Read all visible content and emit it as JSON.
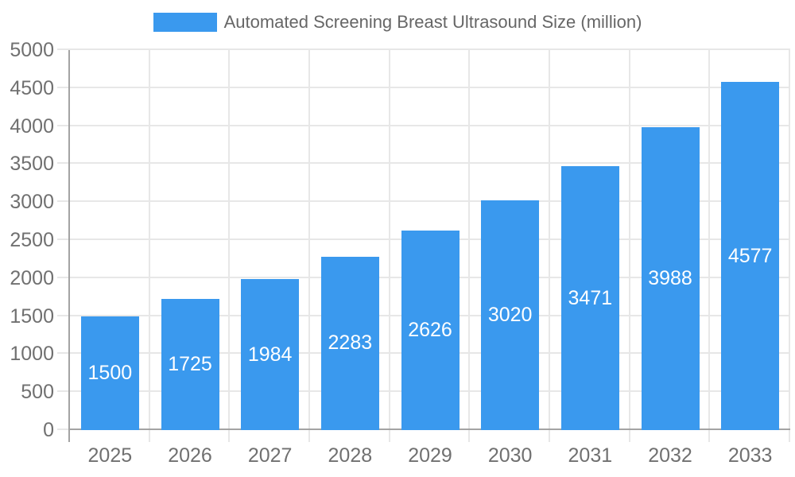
{
  "chart_data": {
    "type": "bar",
    "legend": "Automated Screening Breast Ultrasound Size (million)",
    "legend_position": "top",
    "categories": [
      "2025",
      "2026",
      "2027",
      "2028",
      "2029",
      "2030",
      "2031",
      "2032",
      "2033"
    ],
    "values": [
      1500,
      1725,
      1984,
      2283,
      2626,
      3020,
      3471,
      3988,
      4577
    ],
    "xlabel": "",
    "ylabel": "",
    "ylim": [
      0,
      5000
    ],
    "ytick_step": 500,
    "yticks": [
      0,
      500,
      1000,
      1500,
      2000,
      2500,
      3000,
      3500,
      4000,
      4500,
      5000
    ],
    "grid": true,
    "colors": {
      "bar": "#3A99EE",
      "value_label": "#FFFFFF",
      "axis_text": "#707070",
      "legend_text": "#666666",
      "gridline": "#E7E7E7",
      "axis_line": "#A3A3A3",
      "background": "#FFFFFF"
    }
  }
}
